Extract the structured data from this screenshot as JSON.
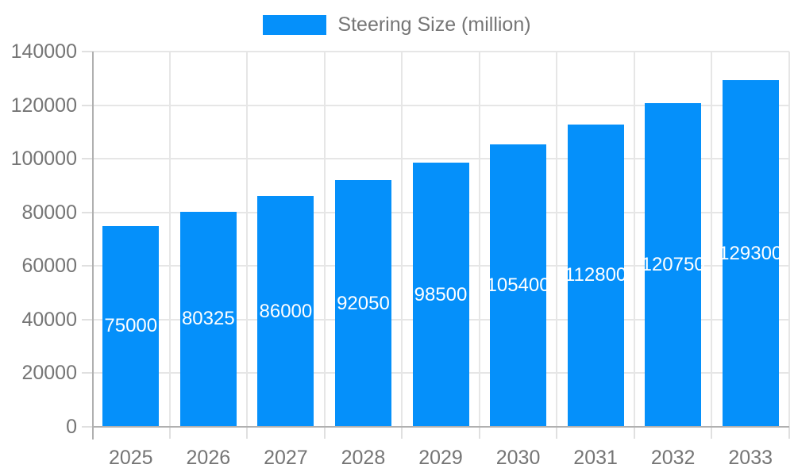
{
  "chart_data": {
    "type": "bar",
    "legend": "Steering Size (million)",
    "legend_position": "top",
    "categories": [
      "2025",
      "2026",
      "2027",
      "2028",
      "2029",
      "2030",
      "2031",
      "2032",
      "2033"
    ],
    "values": [
      75000,
      80325,
      86000,
      92050,
      98500,
      105400,
      112800,
      120750,
      129300
    ],
    "bar_value_labels": [
      "75000",
      "80325",
      "86000",
      "92050",
      "98500",
      "105400",
      "112800",
      "120750",
      "129300"
    ],
    "xlabel": "",
    "ylabel": "",
    "ylim": [
      0,
      140000
    ],
    "ytick_step": 20000,
    "y_tick_labels": [
      "0",
      "20000",
      "40000",
      "60000",
      "80000",
      "100000",
      "120000",
      "140000"
    ],
    "grid": "on"
  },
  "colors": {
    "bar": "#0590FA",
    "bar_label_text": "#ffffff",
    "axis_text": "#757575",
    "legend_text": "#757575",
    "gridline": "#e6e6e6",
    "axis_line": "#b0b0b0",
    "tick_mark": "#e0e0e0",
    "background": "#ffffff"
  }
}
